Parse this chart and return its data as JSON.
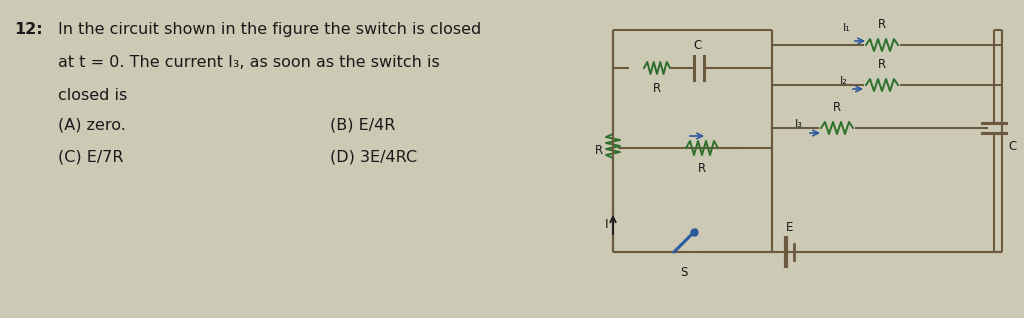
{
  "bg_color": "#ccc9b5",
  "text_color": "#1a1a1a",
  "circuit_color": "#6b5a3e",
  "resistor_color": "#2d6e2d",
  "arrow_color": "#2d5a9e",
  "question_number": "12:",
  "line1": "In the circuit shown in the figure the switch is closed",
  "line2": "at t = 0. The current I₃, as soon as the switch is",
  "line3": "closed is",
  "optA": "(A) zero.",
  "optB": "(B) E/4R",
  "optC": "(C) E/7R",
  "optD": "(D) 3E/4RC",
  "font_q": 11.5,
  "font_opt": 11.5
}
